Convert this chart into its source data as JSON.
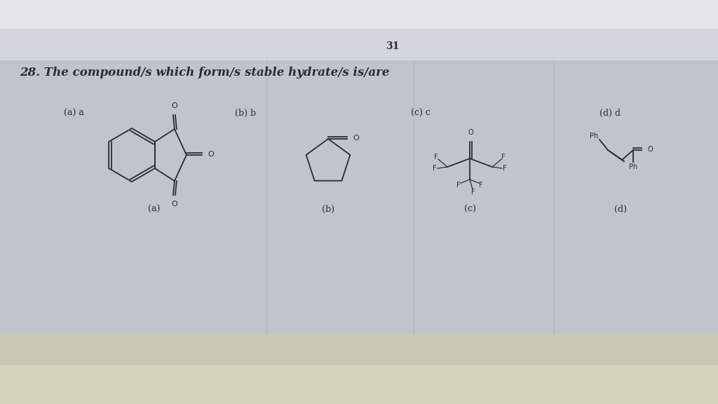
{
  "bg_top_color": "#e8e8ec",
  "bg_main_color": "#c0c4cc",
  "bg_bottom_color": "#a8acb8",
  "bg_very_bottom": "#888c98",
  "text_color": "#2a2a3a",
  "number_text": "31",
  "question_line1": "28. The compound/s which form/s stable hydrate/s is/are",
  "label_a": "(a)",
  "label_b": "(b)",
  "label_c": "(c)",
  "label_d": "(d)",
  "answer_a": "(a) a",
  "answer_b": "(b) b",
  "answer_c": "(c) c",
  "answer_d": "(d) d",
  "q_fontsize": 12,
  "label_fontsize": 9,
  "answer_fontsize": 9,
  "num_fontsize": 10,
  "mol_lw": 1.3,
  "mol_color": "#2a2a3a"
}
